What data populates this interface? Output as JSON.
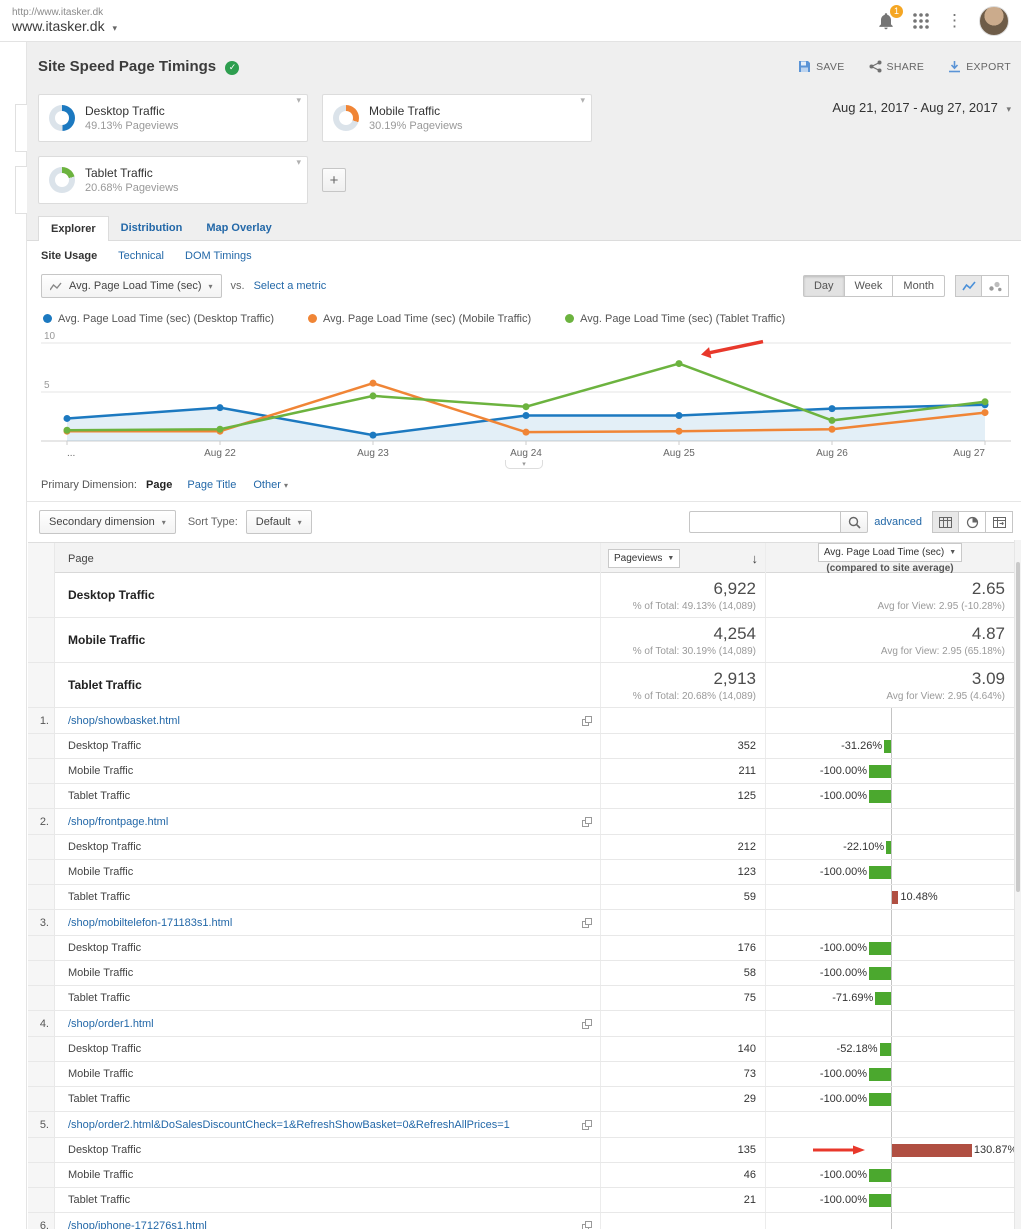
{
  "topbar": {
    "url": "http://www.itasker.dk",
    "account": "www.itasker.dk",
    "notification_count": "1"
  },
  "page_header": {
    "title": "Site Speed Page Timings",
    "save": "SAVE",
    "share": "SHARE",
    "export": "EXPORT",
    "date_range": "Aug 21, 2017 - Aug 27, 2017"
  },
  "segments": [
    {
      "title": "Desktop Traffic",
      "subtitle": "49.13% Pageviews",
      "pct": 49.13,
      "color": "#1c79c0"
    },
    {
      "title": "Mobile Traffic",
      "subtitle": "30.19% Pageviews",
      "pct": 30.19,
      "color": "#f08536"
    },
    {
      "title": "Tablet Traffic",
      "subtitle": "20.68% Pageviews",
      "pct": 20.68,
      "color": "#6cb33f"
    }
  ],
  "tabs": {
    "items": [
      "Explorer",
      "Distribution",
      "Map Overlay"
    ],
    "active": "Explorer"
  },
  "subtabs": {
    "items": [
      "Site Usage",
      "Technical",
      "DOM Timings"
    ],
    "active": "Site Usage"
  },
  "metric_bar": {
    "metric": "Avg. Page Load Time (sec)",
    "vs": "vs.",
    "select_metric": "Select a metric",
    "granularity": [
      "Day",
      "Week",
      "Month"
    ],
    "active_granularity": "Day"
  },
  "legend": [
    "Avg. Page Load Time (sec) (Desktop Traffic)",
    "Avg. Page Load Time (sec) (Mobile Traffic)",
    "Avg. Page Load Time (sec) (Tablet Traffic)"
  ],
  "chart_data": {
    "type": "line",
    "x": [
      "...",
      "Aug 22",
      "Aug 23",
      "Aug 24",
      "Aug 25",
      "Aug 26",
      "Aug 27"
    ],
    "series": [
      {
        "name": "Avg. Page Load Time (sec) (Desktop Traffic)",
        "color": "#1c79c0",
        "area": true,
        "values": [
          2.3,
          3.4,
          0.6,
          2.6,
          2.6,
          3.3,
          3.7
        ]
      },
      {
        "name": "Avg. Page Load Time (sec) (Mobile Traffic)",
        "color": "#f08536",
        "values": [
          1.0,
          1.0,
          5.9,
          0.9,
          1.0,
          1.2,
          2.9
        ]
      },
      {
        "name": "Avg. Page Load Time (sec) (Tablet Traffic)",
        "color": "#6cb33f",
        "values": [
          1.1,
          1.2,
          4.6,
          3.5,
          7.9,
          2.1,
          4.0
        ]
      }
    ],
    "ylim": [
      0,
      10
    ],
    "yticks": [
      5,
      10
    ],
    "annotation": "red arrow pointing at Tablet Traffic peak on Aug 25"
  },
  "dimension_bar": {
    "label": "Primary Dimension:",
    "options": [
      "Page",
      "Page Title",
      "Other"
    ],
    "active": "Page"
  },
  "table_toolbar": {
    "secondary_dimension": "Secondary dimension",
    "sort_type_label": "Sort Type:",
    "sort_type_value": "Default",
    "search_placeholder": "",
    "advanced": "advanced"
  },
  "table": {
    "columns": {
      "page": "Page",
      "pageviews": "Pageviews",
      "metric": "Avg. Page Load Time (sec)",
      "metric_note": "(compared to site average)"
    },
    "summary_rows": [
      {
        "label": "Desktop Traffic",
        "pageviews": "6,922",
        "pageviews_note": "% of Total: 49.13% (14,089)",
        "load_time": "2.65",
        "load_time_note": "Avg for View: 2.95 (-10.28%)"
      },
      {
        "label": "Mobile Traffic",
        "pageviews": "4,254",
        "pageviews_note": "% of Total: 30.19% (14,089)",
        "load_time": "4.87",
        "load_time_note": "Avg for View: 2.95 (65.18%)"
      },
      {
        "label": "Tablet Traffic",
        "pageviews": "2,913",
        "pageviews_note": "% of Total: 20.68% (14,089)",
        "load_time": "3.09",
        "load_time_note": "Avg for View: 2.95 (4.64%)"
      }
    ],
    "rows": [
      {
        "index": "1.",
        "page": "/shop/showbasket.html",
        "segments": [
          {
            "label": "Desktop Traffic",
            "pageviews": "352",
            "delta": -31.26
          },
          {
            "label": "Mobile Traffic",
            "pageviews": "211",
            "delta": -100.0
          },
          {
            "label": "Tablet Traffic",
            "pageviews": "125",
            "delta": -100.0
          }
        ]
      },
      {
        "index": "2.",
        "page": "/shop/frontpage.html",
        "segments": [
          {
            "label": "Desktop Traffic",
            "pageviews": "212",
            "delta": -22.1
          },
          {
            "label": "Mobile Traffic",
            "pageviews": "123",
            "delta": -100.0
          },
          {
            "label": "Tablet Traffic",
            "pageviews": "59",
            "delta": 10.48
          }
        ]
      },
      {
        "index": "3.",
        "page": "/shop/mobiltelefon-171183s1.html",
        "segments": [
          {
            "label": "Desktop Traffic",
            "pageviews": "176",
            "delta": -100.0
          },
          {
            "label": "Mobile Traffic",
            "pageviews": "58",
            "delta": -100.0
          },
          {
            "label": "Tablet Traffic",
            "pageviews": "75",
            "delta": -71.69
          }
        ]
      },
      {
        "index": "4.",
        "page": "/shop/order1.html",
        "segments": [
          {
            "label": "Desktop Traffic",
            "pageviews": "140",
            "delta": -52.18
          },
          {
            "label": "Mobile Traffic",
            "pageviews": "73",
            "delta": -100.0
          },
          {
            "label": "Tablet Traffic",
            "pageviews": "29",
            "delta": -100.0
          }
        ]
      },
      {
        "index": "5.",
        "page": "/shop/order2.html&DoSalesDiscountCheck=1&RefreshShowBasket=0&RefreshAllPrices=1",
        "segments": [
          {
            "label": "Desktop Traffic",
            "pageviews": "135",
            "delta": 130.87,
            "arrow": true
          },
          {
            "label": "Mobile Traffic",
            "pageviews": "46",
            "delta": -100.0
          },
          {
            "label": "Tablet Traffic",
            "pageviews": "21",
            "delta": -100.0
          }
        ]
      },
      {
        "index": "6.",
        "page": "/shop/iphone-171276s1.html",
        "segments": []
      }
    ]
  },
  "colors": {
    "link": "#2368a8",
    "green_bar": "#4ba82e",
    "red_bar": "#b04f42",
    "arrow_red": "#e8382b"
  }
}
